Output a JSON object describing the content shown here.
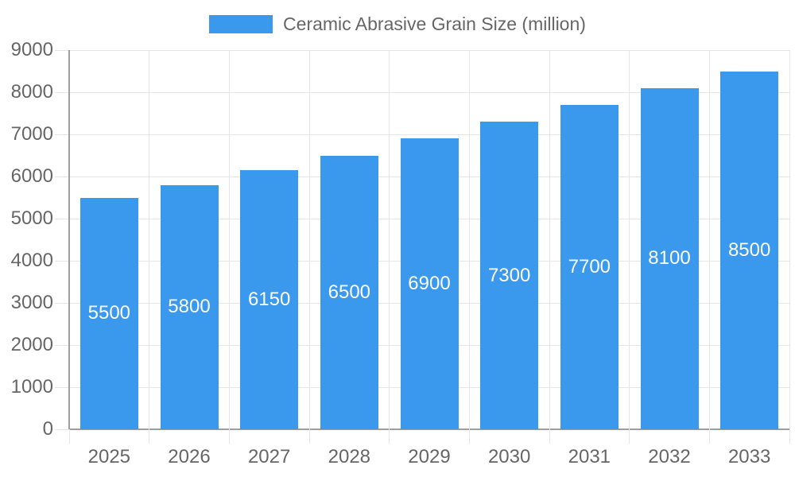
{
  "legend": {
    "label": "Ceramic Abrasive Grain Size (million)"
  },
  "chart_data": {
    "type": "bar",
    "title": "Ceramic Abrasive Grain Size (million)",
    "categories": [
      "2025",
      "2026",
      "2027",
      "2028",
      "2029",
      "2030",
      "2031",
      "2032",
      "2033"
    ],
    "values": [
      5500,
      5800,
      6150,
      6500,
      6900,
      7300,
      7700,
      8100,
      8500
    ],
    "xlabel": "",
    "ylabel": "",
    "ylim": [
      0,
      9000
    ],
    "ytick_step": 1000,
    "ytick_labels": [
      "0",
      "1000",
      "2000",
      "3000",
      "4000",
      "5000",
      "6000",
      "7000",
      "8000",
      "9000"
    ],
    "grid": true,
    "legend_position": "top",
    "value_labels": "centered-white",
    "colors": {
      "bar": "#3a99ec",
      "gridline": "#e6e6e6",
      "axis_line": "#9e9e9e",
      "tick_label": "#666666",
      "value_label": "#ffffff",
      "legend_text": "#666666",
      "background": "#ffffff"
    }
  }
}
